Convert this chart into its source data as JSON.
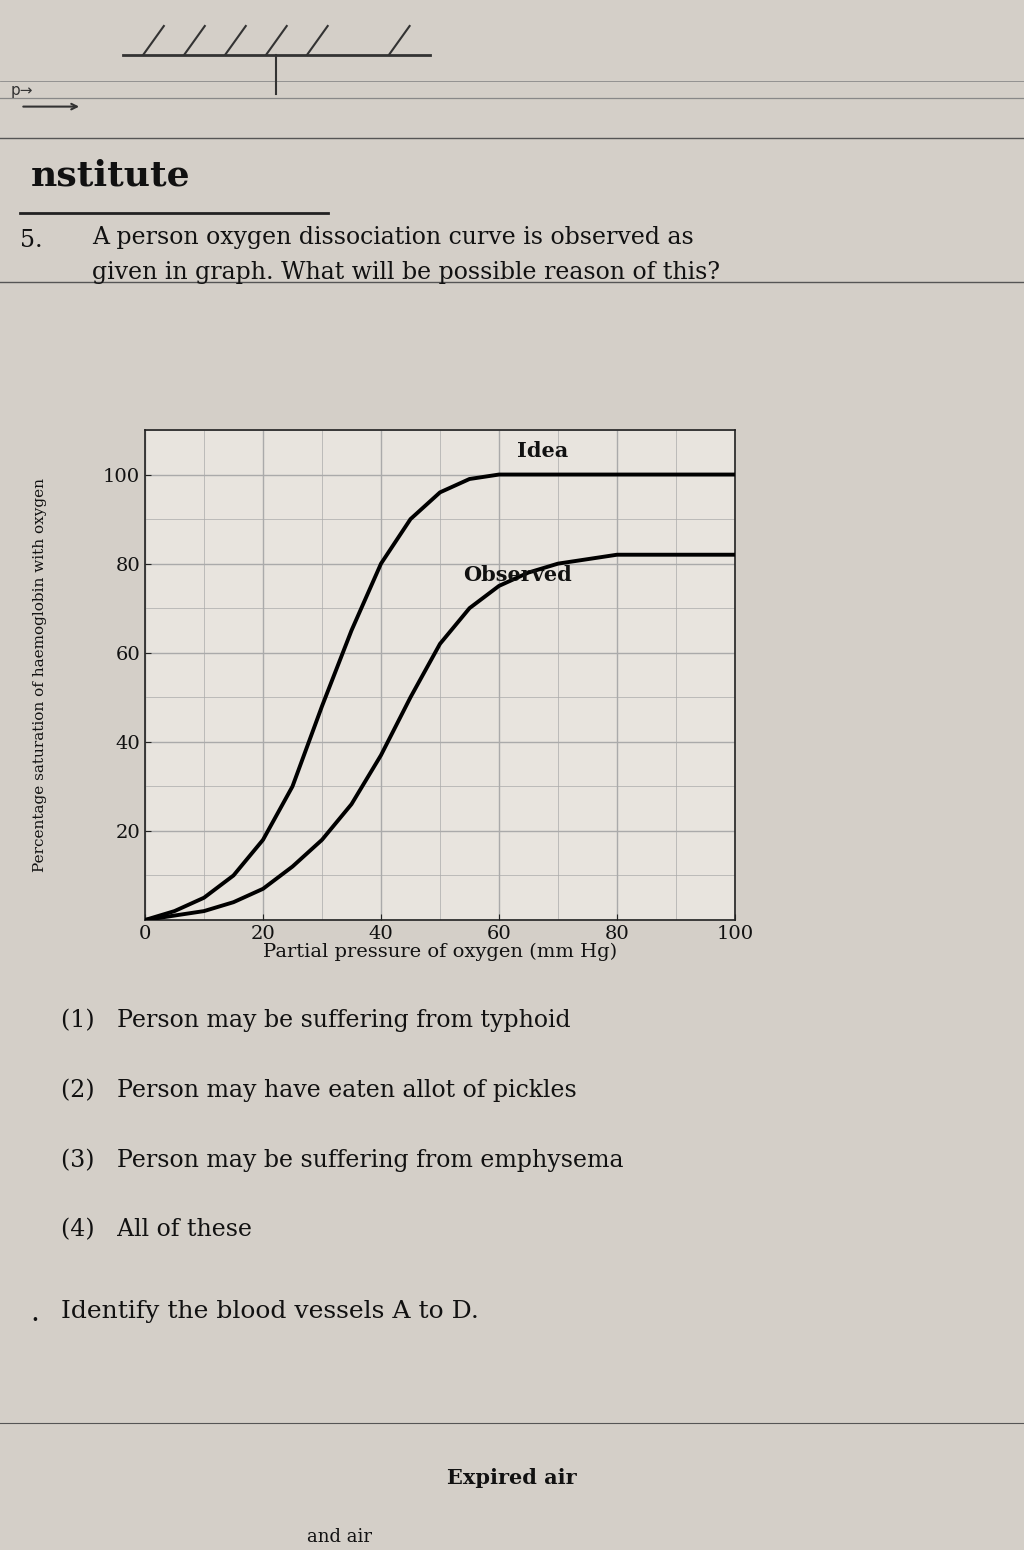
{
  "background_color": "#d4cfc8",
  "title_text": "nstitute",
  "question_line1": "A person oxygen dissociation curve is observed as",
  "question_line2": "given in graph. What will be possible reason of this?",
  "xlabel": "Partial pressure of oxygen (mm Hg)",
  "ylabel": "Percentage saturation of haemoglobin with oxygen",
  "xlim": [
    0,
    100
  ],
  "ylim": [
    0,
    110
  ],
  "xticks": [
    0,
    20,
    40,
    60,
    80,
    100
  ],
  "yticks": [
    20,
    40,
    60,
    80,
    100
  ],
  "ideal_label": "Idea",
  "observed_label": "Observed",
  "options": [
    "(1)   Person may be suffering from typhoid",
    "(2)   Person may have eaten allot of pickles",
    "(3)   Person may be suffering from emphysema",
    "(4)   All of these"
  ],
  "footer_text": "Identify the blood vessels A to D.",
  "footer2_text": "Expired air",
  "ideal_x": [
    0,
    5,
    10,
    15,
    20,
    25,
    30,
    35,
    40,
    45,
    50,
    55,
    60,
    65,
    70,
    75,
    80,
    85,
    90,
    95,
    100
  ],
  "ideal_y": [
    0,
    2,
    5,
    10,
    18,
    30,
    48,
    65,
    80,
    90,
    96,
    99,
    100,
    100,
    100,
    100,
    100,
    100,
    100,
    100,
    100
  ],
  "observed_x": [
    0,
    5,
    10,
    15,
    20,
    25,
    30,
    35,
    40,
    45,
    50,
    55,
    60,
    65,
    70,
    75,
    80,
    85,
    90,
    95,
    100
  ],
  "observed_y": [
    0,
    1,
    2,
    4,
    7,
    12,
    18,
    26,
    37,
    50,
    62,
    70,
    75,
    78,
    80,
    81,
    82,
    82,
    82,
    82,
    82
  ],
  "line_color": "#000000",
  "grid_color": "#aaaaaa",
  "text_color": "#111111",
  "graph_bg": "#e8e4de"
}
